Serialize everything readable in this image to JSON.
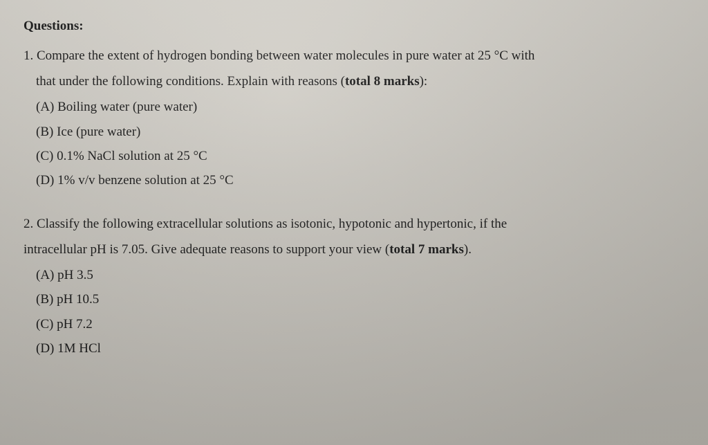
{
  "heading": "Questions:",
  "q1": {
    "line1": "1. Compare the extent of hydrogen bonding between water molecules in pure water at 25 °C with",
    "line2_pre": "that under the following conditions. Explain with reasons (",
    "line2_bold": "total 8 marks",
    "line2_post": "):",
    "options": {
      "A": "(A) Boiling water (pure water)",
      "B": "(B) Ice (pure water)",
      "C": "(C) 0.1% NaCl solution at 25 °C",
      "D": "(D) 1% v/v benzene solution at 25 °C"
    }
  },
  "q2": {
    "line1": "2. Classify the following extracellular solutions as isotonic, hypotonic and hypertonic, if the",
    "line2_pre": "intracellular pH is 7.05. Give adequate reasons to support your view (",
    "line2_bold": "total 7 marks",
    "line2_post": ").",
    "options": {
      "A": "(A) pH 3.5",
      "B": "(B) pH 10.5",
      "C": "(C) pH 7.2",
      "D": "(D) 1M HCl"
    }
  }
}
